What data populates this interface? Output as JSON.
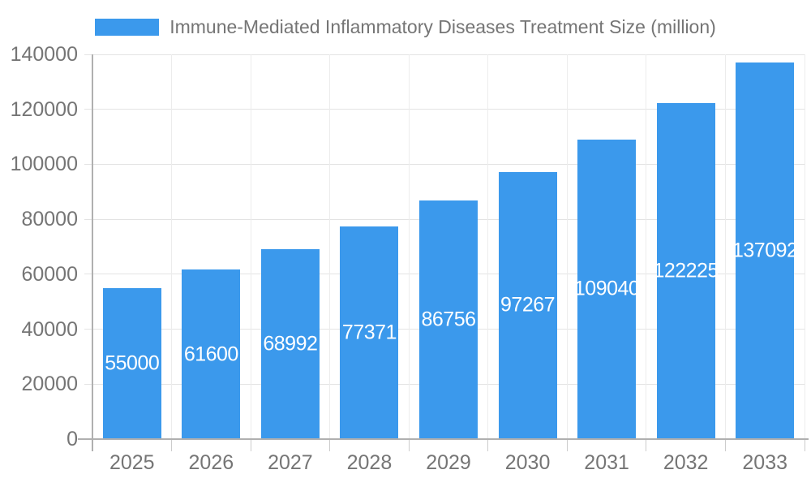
{
  "legend": {
    "label": "Immune-Mediated Inflammatory Diseases Treatment Size (million)"
  },
  "chart_data": {
    "type": "bar",
    "title": "",
    "categories": [
      "2025",
      "2026",
      "2027",
      "2028",
      "2029",
      "2030",
      "2031",
      "2032",
      "2033"
    ],
    "values": [
      55000,
      61600,
      68992,
      77371,
      86756,
      97267,
      109040,
      122225,
      137092
    ],
    "series": [
      {
        "name": "Immune-Mediated Inflammatory Diseases Treatment Size (million)",
        "values": [
          55000,
          61600,
          68992,
          77371,
          86756,
          97267,
          109040,
          122225,
          137092
        ]
      }
    ],
    "xlabel": "",
    "ylabel": "",
    "ylim": [
      0,
      140000
    ],
    "ytick_step": 20000,
    "ytick_labels": [
      "0",
      "20000",
      "40000",
      "60000",
      "80000",
      "100000",
      "120000",
      "140000"
    ],
    "grid": true,
    "legend_position": "top",
    "value_labels": "inside-center",
    "colors": {
      "bar": "#3B99EC",
      "axis_text": "#757575",
      "value_text": "#ffffff",
      "grid_h": "#e3e3e3",
      "grid_v": "#ececec",
      "axis_line": "#b0b0b0",
      "tick": "#cccccc",
      "background": "#ffffff"
    }
  }
}
